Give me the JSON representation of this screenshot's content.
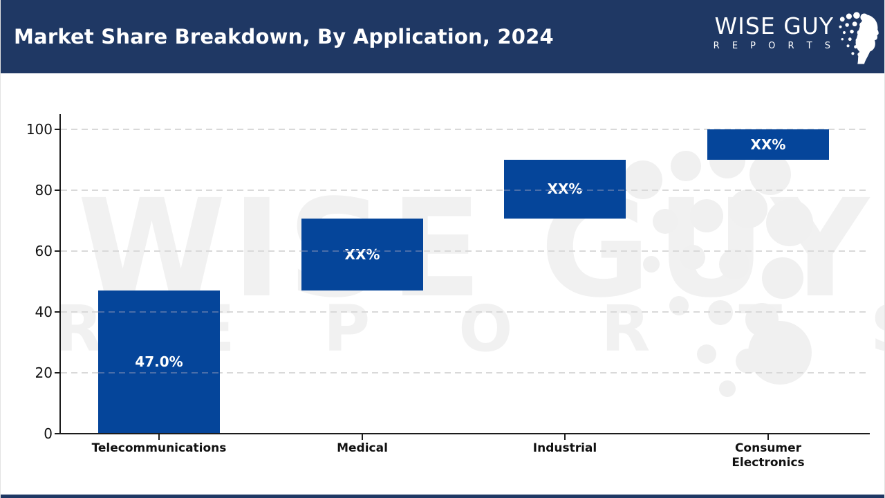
{
  "header": {
    "title": "Market Share Breakdown, By Application, 2024",
    "logo": {
      "name": "WISE GUY",
      "subtitle": "R E P O R T S"
    }
  },
  "watermark": {
    "line1": "WISE GUY",
    "line2": "R E P O R T S"
  },
  "colors": {
    "header_bg": "#1f3864",
    "bar": "#05459a",
    "grid": "#d9d9d9",
    "grid_on_bar": "#4a6ea9",
    "axis": "#1c1c1c",
    "bar_label": "#ffffff",
    "watermark": "#f1f1f1"
  },
  "chart_data": {
    "type": "bar",
    "subtype": "waterfall",
    "title": "Market Share Breakdown, By Application, 2024",
    "categories": [
      "Telecommunications",
      "Medical",
      "Industrial",
      "Consumer\nElectronics"
    ],
    "segments": [
      {
        "category": "Telecommunications",
        "start": 0,
        "end": 47,
        "label": "47.0%"
      },
      {
        "category": "Medical",
        "start": 47,
        "end": 70.5,
        "label": "XX%"
      },
      {
        "category": "Industrial",
        "start": 70.5,
        "end": 90,
        "label": "XX%"
      },
      {
        "category": "Consumer Electronics",
        "start": 90,
        "end": 100,
        "label": "XX%"
      }
    ],
    "xlabel": "",
    "ylabel": "",
    "ylim": [
      0,
      100
    ],
    "yticks": [
      0,
      20,
      40,
      60,
      80,
      100
    ],
    "grid": "dashed-horizontal",
    "legend_position": "none"
  }
}
